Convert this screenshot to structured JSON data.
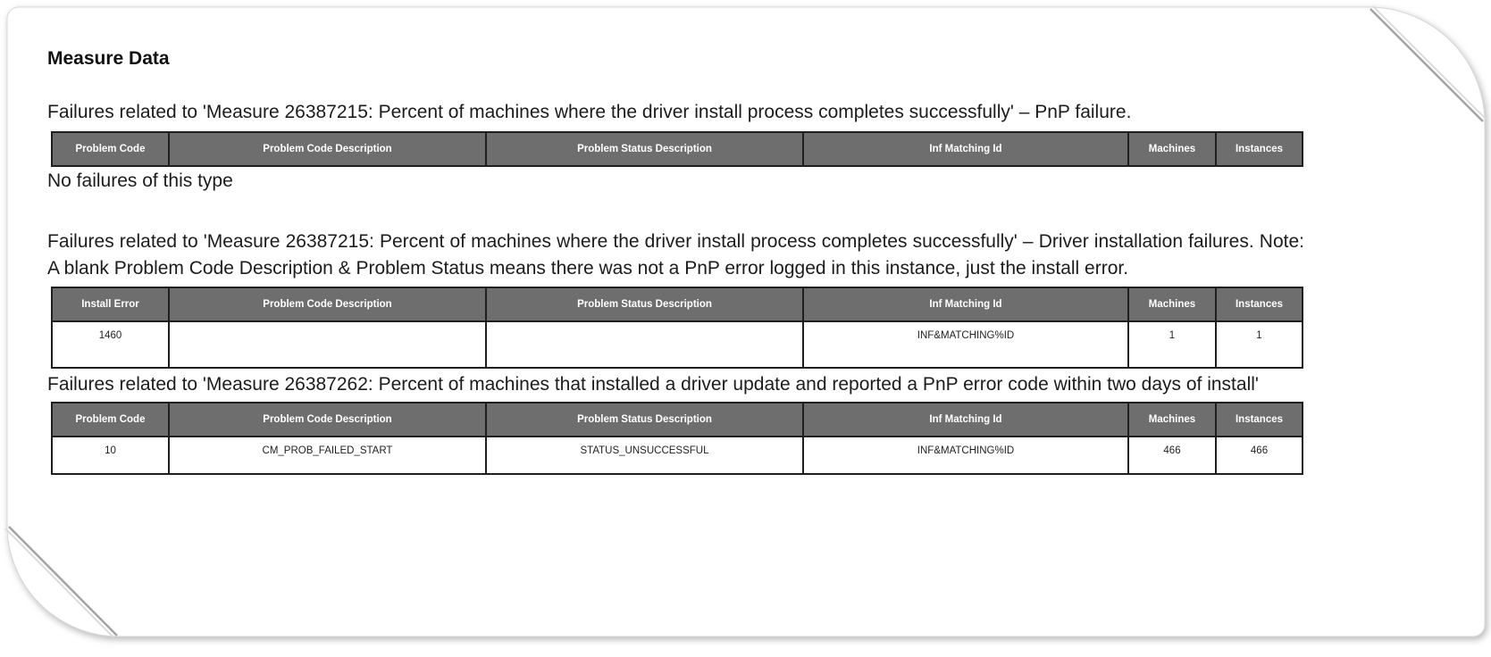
{
  "document": {
    "title": "Measure Data",
    "sections": [
      {
        "intro": "Failures related to 'Measure 26387215: Percent of machines where the driver install process completes successfully' – PnP failure.",
        "table": {
          "headers": [
            "Problem Code",
            "Problem Code Description",
            "Problem Status Description",
            "Inf Matching Id",
            "Machines",
            "Instances"
          ],
          "rows": []
        },
        "empty_note": "No failures of this type"
      },
      {
        "intro": "Failures related to 'Measure 26387215: Percent of machines where the driver install process completes successfully' – Driver installation failures. Note: A blank Problem Code Description & Problem Status means there was not a PnP error logged in this instance, just the install error.",
        "table": {
          "headers": [
            "Install Error",
            "Problem Code Description",
            "Problem Status Description",
            "Inf Matching Id",
            "Machines",
            "Instances"
          ],
          "rows": [
            [
              "1460",
              "",
              "",
              "INF&MATCHING%ID",
              "1",
              "1"
            ]
          ]
        }
      },
      {
        "intro": "Failures related to 'Measure 26387262: Percent of machines that installed a driver update and reported a PnP error code within two days of install'",
        "table": {
          "headers": [
            "Problem Code",
            "Problem Code Description",
            "Problem Status Description",
            "Inf Matching Id",
            "Machines",
            "Instances"
          ],
          "rows": [
            [
              "10",
              "CM_PROB_FAILED_START",
              "STATUS_UNSUCCESSFUL",
              "INF&MATCHING%ID",
              "466",
              "466"
            ]
          ]
        }
      }
    ],
    "colors": {
      "table_header_bg": "#6e6e6e",
      "table_header_text": "#ffffff",
      "table_border": "#1f1f1f",
      "fold_line": "#a3a3a3",
      "page_shadow": "#9e9e9e"
    }
  }
}
